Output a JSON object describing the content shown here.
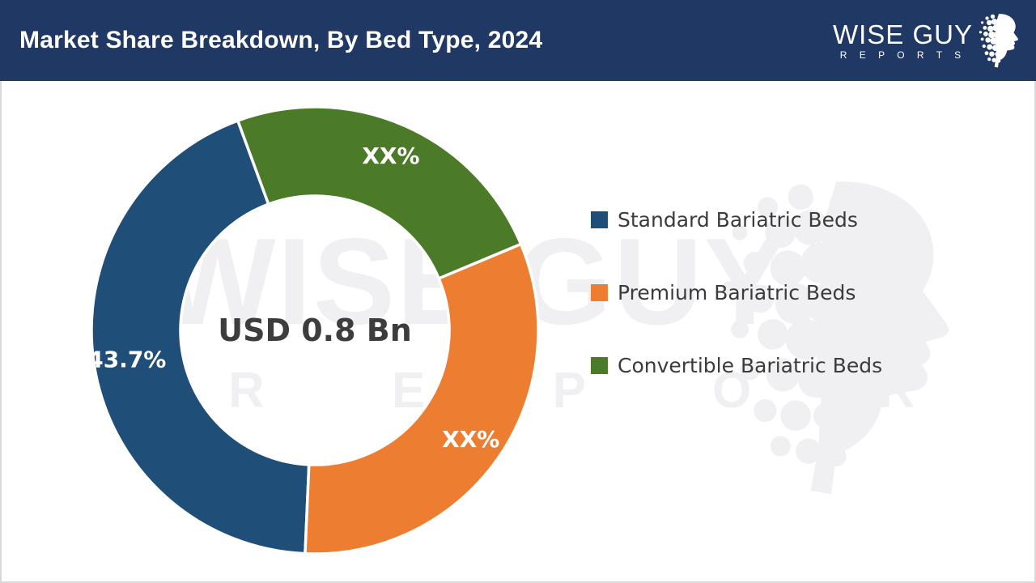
{
  "header": {
    "title": "Market Share Breakdown, By Bed Type, 2024",
    "background_color": "#203864",
    "logo": {
      "name": "WISE GUY",
      "sub": "R E P O R T S"
    }
  },
  "watermark": {
    "line1": "WISE GUY",
    "line2": "R E P O R T S"
  },
  "chart_data": {
    "type": "donut",
    "title": "Market Share Breakdown, By Bed Type, 2024",
    "center_label": "USD 0.8 Bn",
    "legend_position": "right",
    "segments": [
      {
        "name": "Standard Bariatric Beds",
        "value_pct": 43.7,
        "label": "43.7%",
        "color": "#1F4E79"
      },
      {
        "name": "Premium Bariatric Beds",
        "value_pct": 32.0,
        "label": "XX%",
        "color": "#ED7D31"
      },
      {
        "name": "Convertible Bariatric Beds",
        "value_pct": 24.3,
        "label": "XX%",
        "color": "#4B7B28"
      }
    ],
    "layout": {
      "start_deg": 182.5,
      "draw_order": [
        0,
        2,
        1
      ],
      "clockwise": true,
      "outer_r": 276,
      "inner_r": 166,
      "label_r": 235,
      "gap_stroke": "#ffffff",
      "gap_width": 3.5
    }
  },
  "colors": {
    "header_bg": "#203864",
    "watermark": "#f0f0f2",
    "border": "#d9d9d9",
    "slice_label": "#ffffff",
    "center_text": "#3d3d3d",
    "legend_text": "#3b3b3b"
  }
}
